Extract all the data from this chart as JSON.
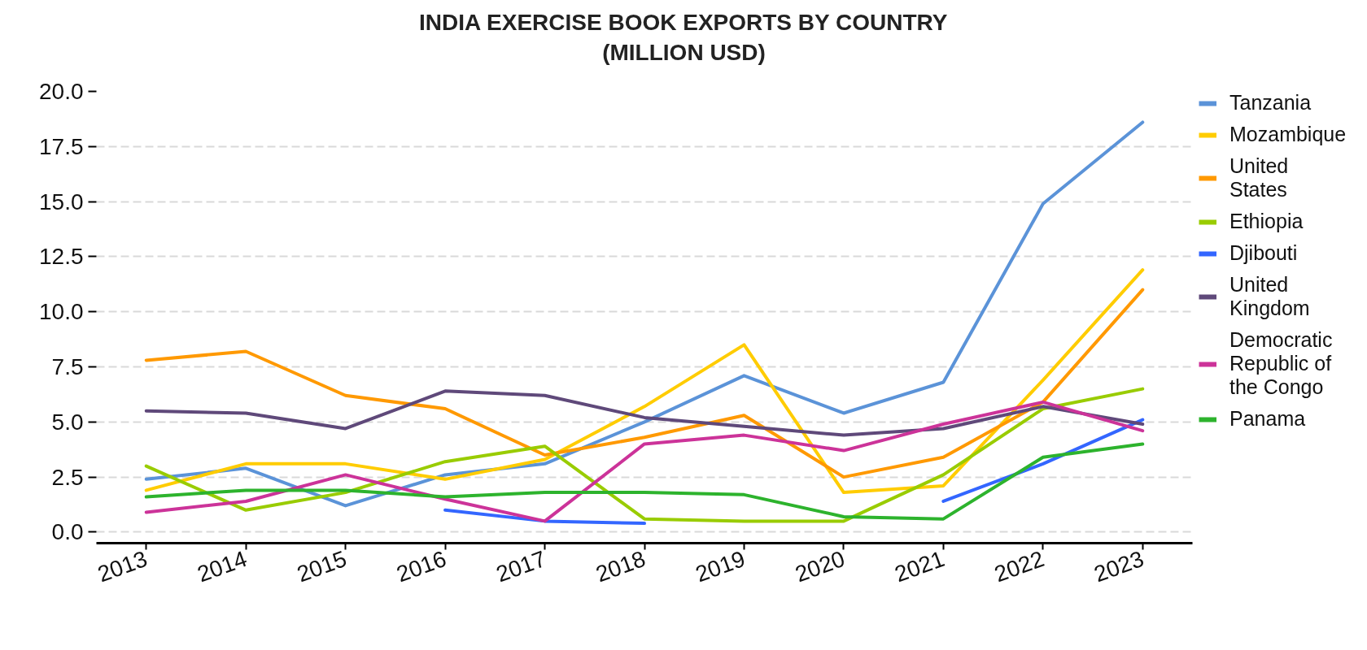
{
  "chart_data": {
    "type": "line",
    "title": "INDIA EXERCISE BOOK EXPORTS BY COUNTRY (MILLION USD)",
    "x": [
      2013,
      2014,
      2015,
      2016,
      2017,
      2018,
      2019,
      2020,
      2021,
      2022,
      2023
    ],
    "xlim": [
      2012.5,
      2023.5
    ],
    "xticks": [
      2013,
      2014,
      2015,
      2016,
      2017,
      2018,
      2019,
      2020,
      2021,
      2022,
      2023
    ],
    "ylim": [
      -0.5,
      20
    ],
    "yticks": [
      {
        "value": 0,
        "label": "0.0"
      },
      2.5,
      {
        "value": 5,
        "label": "5.0"
      },
      7.5,
      {
        "value": 10,
        "label": "10.0"
      },
      12.5,
      {
        "value": 15,
        "label": "15.0"
      },
      17.5,
      {
        "value": 20,
        "label": "20.0"
      }
    ],
    "grid": "y",
    "legend": "right",
    "series": [
      {
        "name": "Tanzania",
        "color": "#5b93d8",
        "values": [
          2.4,
          2.9,
          1.2,
          2.6,
          3.1,
          5.0,
          7.1,
          5.4,
          6.8,
          14.9,
          18.6
        ]
      },
      {
        "name": "Mozambique",
        "color": "#ffcc00",
        "values": [
          1.9,
          3.1,
          3.1,
          2.4,
          3.3,
          5.7,
          8.5,
          1.8,
          2.1,
          6.9,
          11.9
        ]
      },
      {
        "name": "United States",
        "color": "#ff9900",
        "values": [
          7.8,
          8.2,
          6.2,
          5.6,
          3.5,
          4.3,
          5.3,
          2.5,
          3.4,
          5.9,
          11.0
        ]
      },
      {
        "name": "Ethiopia",
        "color": "#99cc00",
        "values": [
          3.0,
          1.0,
          1.8,
          3.2,
          3.9,
          0.6,
          0.5,
          0.5,
          2.6,
          5.6,
          6.5
        ]
      },
      {
        "name": "Djibouti",
        "color": "#3366ff",
        "values": [
          null,
          null,
          null,
          1.0,
          0.5,
          0.4,
          null,
          null,
          1.4,
          3.1,
          5.1
        ]
      },
      {
        "name": "United Kingdom",
        "color": "#5f497a",
        "values": [
          5.5,
          5.4,
          4.7,
          6.4,
          6.2,
          5.2,
          4.8,
          4.4,
          4.7,
          5.7,
          4.9
        ]
      },
      {
        "name": "Democratic Republic of the Congo",
        "color": "#cc3399",
        "values": [
          0.9,
          1.4,
          2.6,
          1.5,
          0.5,
          4.0,
          4.4,
          3.7,
          4.9,
          5.9,
          4.6
        ]
      },
      {
        "name": "Panama",
        "color": "#2db32d",
        "values": [
          1.6,
          1.9,
          1.9,
          1.6,
          1.8,
          1.8,
          1.7,
          0.7,
          0.6,
          3.4,
          4.0
        ]
      }
    ]
  }
}
